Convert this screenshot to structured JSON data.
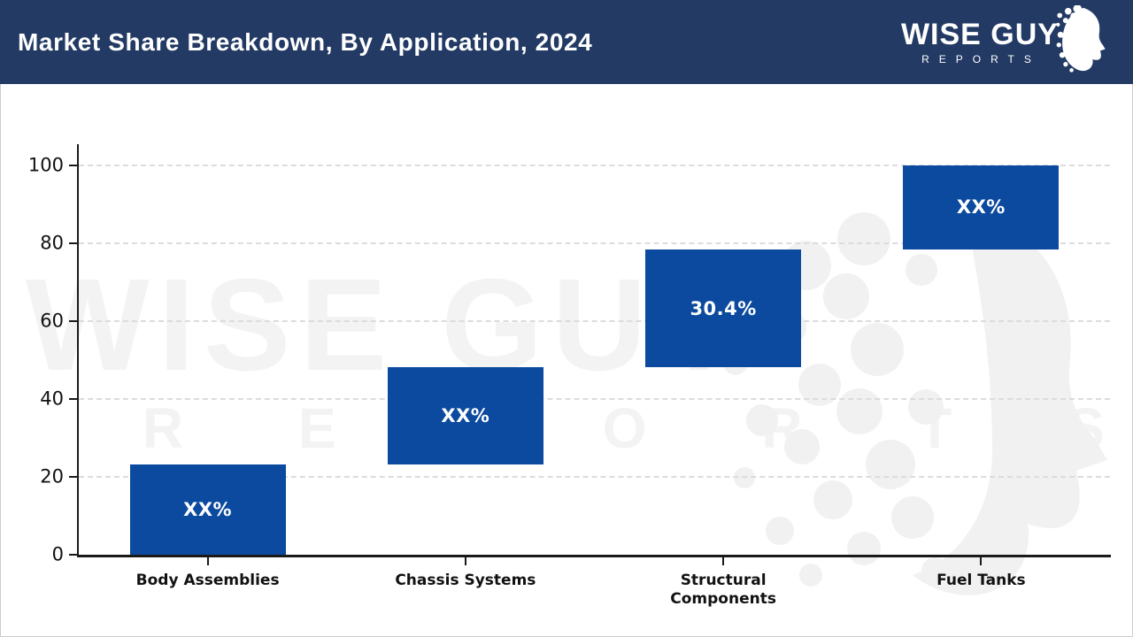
{
  "header": {
    "title": "Market Share Breakdown, By Application, 2024",
    "logo": {
      "name": "WISE GUY",
      "sub": "REPORTS"
    }
  },
  "watermark": {
    "line1": "WISE GUY",
    "line2": "R E P O R T S"
  },
  "colors": {
    "header_bg": "#233a64",
    "bar_fill": "#0b4a9e",
    "grid": "#dcdcdc",
    "axis": "#1a1a1a",
    "watermark": "#f3f3f3"
  },
  "chart_data": {
    "type": "bar",
    "subtype": "floating-waterfall",
    "title": "Market Share Breakdown, By Application, 2024",
    "categories": [
      "Body Assemblies",
      "Chassis Systems",
      "Structural Components",
      "Fuel Tanks"
    ],
    "category_label_lines": [
      [
        "Body Assemblies"
      ],
      [
        "Chassis Systems"
      ],
      [
        "Structural",
        "Components"
      ],
      [
        "Fuel Tanks"
      ]
    ],
    "series": [
      {
        "name": "Market share (%)",
        "segments": [
          {
            "category": "Body Assemblies",
            "start": 0,
            "end": 23.2,
            "label": "XX%"
          },
          {
            "category": "Chassis Systems",
            "start": 23.2,
            "end": 48.1,
            "label": "XX%"
          },
          {
            "category": "Structural Components",
            "start": 48.1,
            "end": 78.5,
            "label": "30.4%"
          },
          {
            "category": "Fuel Tanks",
            "start": 78.5,
            "end": 100,
            "label": "XX%"
          }
        ]
      }
    ],
    "xlabel": "",
    "ylabel": "",
    "ylim": [
      0,
      100
    ],
    "yticks": [
      0,
      20,
      40,
      60,
      80,
      100
    ],
    "grid": "horizontal-dashed",
    "legend": "none"
  }
}
